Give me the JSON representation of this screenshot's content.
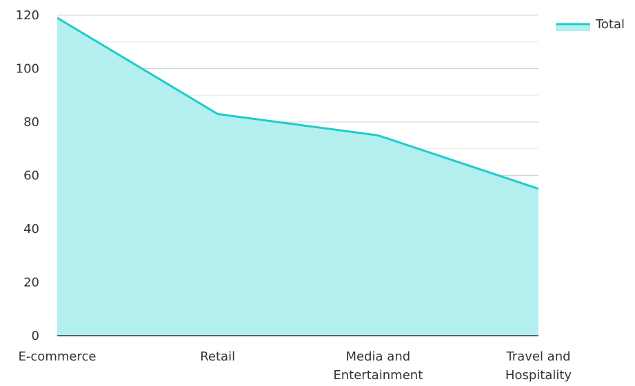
{
  "chart_data": {
    "type": "area",
    "categories": [
      [
        "E-commerce"
      ],
      [
        "Retail"
      ],
      [
        "Media and",
        "Entertainment"
      ],
      [
        "Travel and",
        "Hospitality"
      ]
    ],
    "series": [
      {
        "name": "Total",
        "values": [
          119,
          83,
          75,
          55
        ]
      }
    ],
    "ylim": [
      0,
      120
    ],
    "yticks": [
      0,
      20,
      40,
      60,
      80,
      100,
      120
    ],
    "grid": true,
    "legend": "top-right",
    "colors": {
      "line": "#1ECBCB",
      "fill": "#B2EFEE",
      "grid": "#c8d6d6",
      "minor_grid": "#e3eaea",
      "axis": "#333333"
    }
  }
}
